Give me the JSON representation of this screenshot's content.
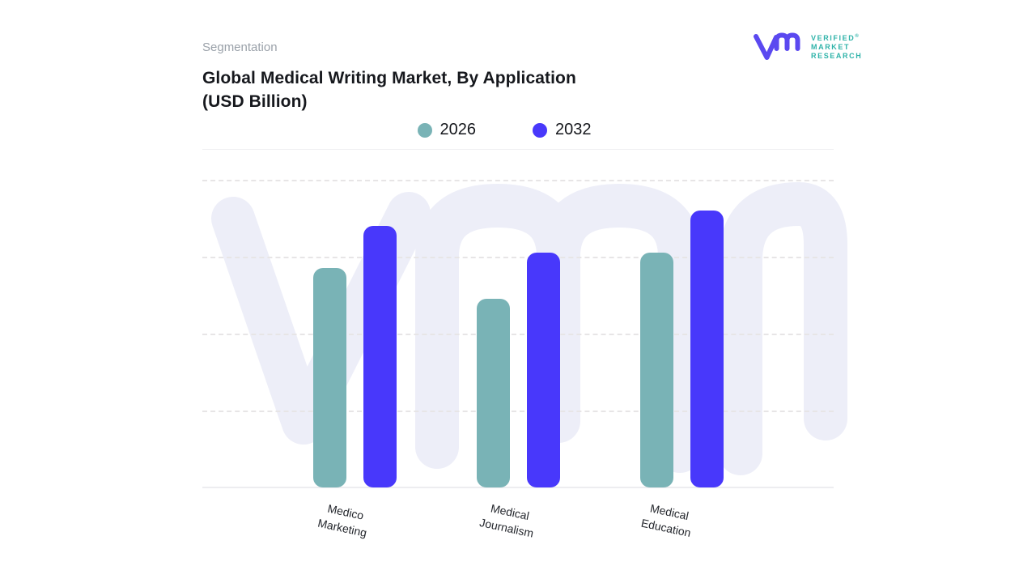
{
  "page": {
    "background": "#ffffff"
  },
  "header": {
    "eyebrow": "Segmentation",
    "title_line1": "Global Medical Writing Market, By Application",
    "title_line2": "(USD Billion)"
  },
  "logo": {
    "monogram": "vmr",
    "glyph_color": "#5b49f0",
    "text_color": "#2fb3a9",
    "lines": [
      "VERIFIED",
      "MARKET",
      "RESEARCH"
    ],
    "registered_mark": "®"
  },
  "watermark": {
    "glyph": "vmr",
    "color": "#edeef8"
  },
  "chart_data": {
    "type": "bar",
    "title": "Global Medical Writing Market, By Application (USD Billion)",
    "categories": [
      "Medico Marketing",
      "Medical Journalism",
      "Medical Education"
    ],
    "series": [
      {
        "name": "2026",
        "color": "#79b3b6",
        "values": [
          2.85,
          2.45,
          3.05
        ]
      },
      {
        "name": "2032",
        "color": "#4838fb",
        "values": [
          3.4,
          3.05,
          3.6
        ]
      }
    ],
    "xlabel": "",
    "ylabel": "",
    "ylim": [
      0,
      4
    ],
    "y_axis_tick_labels_visible": false,
    "value_note": "Y axis has no printed tick labels; values are estimated in gridline units (one dashed gridline = 1 unit).",
    "gridlines": "horizontal-dashed",
    "legend_position": "top-center",
    "x_label_rotation_deg": 12,
    "bar_corner_radius_px": 12
  }
}
